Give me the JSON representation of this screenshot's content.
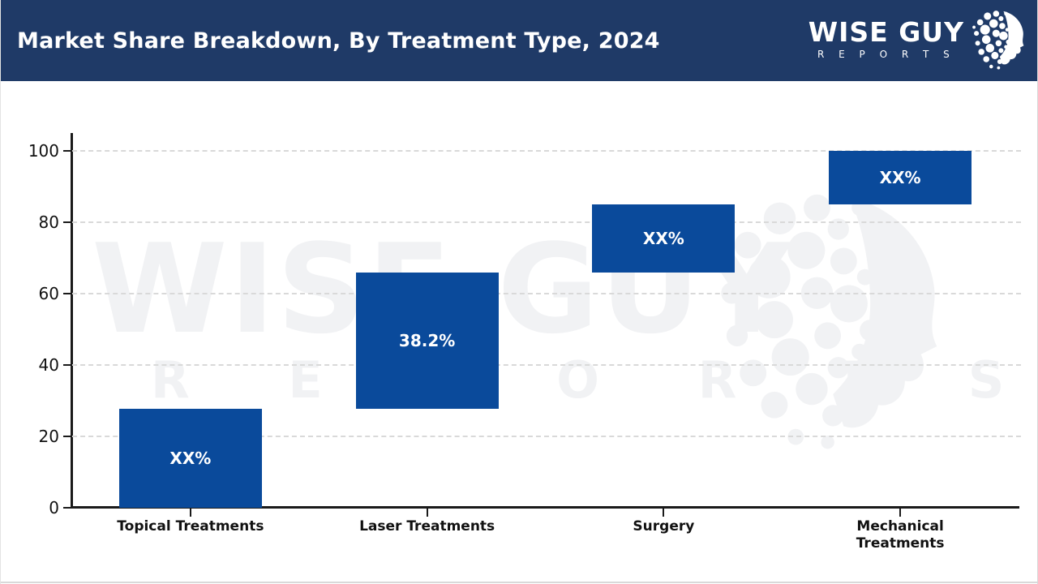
{
  "header": {
    "title": "Market Share Breakdown, By Treatment Type, 2024",
    "logo": {
      "name": "WISE GUY",
      "sub": "R E P O R T S"
    }
  },
  "watermark": {
    "name": "WISE GUY",
    "sub": "R E P O R T S"
  },
  "chart_data": {
    "type": "bar",
    "subtype": "floating-waterfall",
    "title": "Market Share Breakdown, By Treatment Type, 2024",
    "categories": [
      "Topical Treatments",
      "Laser Treatments",
      "Surgery",
      "Mechanical\nTreatments"
    ],
    "bars": [
      {
        "category": "Topical Treatments",
        "start": 0,
        "end": 27.7,
        "label": "XX%"
      },
      {
        "category": "Laser Treatments",
        "start": 27.7,
        "end": 65.9,
        "label": "38.2%"
      },
      {
        "category": "Surgery",
        "start": 65.9,
        "end": 85.0,
        "label": "XX%"
      },
      {
        "category": "Mechanical Treatments",
        "start": 85.0,
        "end": 100.0,
        "label": "XX%"
      }
    ],
    "xlabel": "",
    "ylabel": "",
    "ylim": [
      0,
      100
    ],
    "yticks": [
      0,
      20,
      40,
      60,
      80,
      100
    ],
    "grid": "horizontal-dashed",
    "legend": "none",
    "bar_color": "#0A4A9B",
    "bar_label_color": "#FFFFFF"
  },
  "colors": {
    "header_bg": "#1F3A67",
    "header_text": "#FFFFFF",
    "bar_blue": "#0A4A9B",
    "watermark": "#F1F2F4",
    "gridline": "#D9D9D9",
    "axis": "#1A1A1A",
    "page_bg": "#FFFFFF"
  }
}
